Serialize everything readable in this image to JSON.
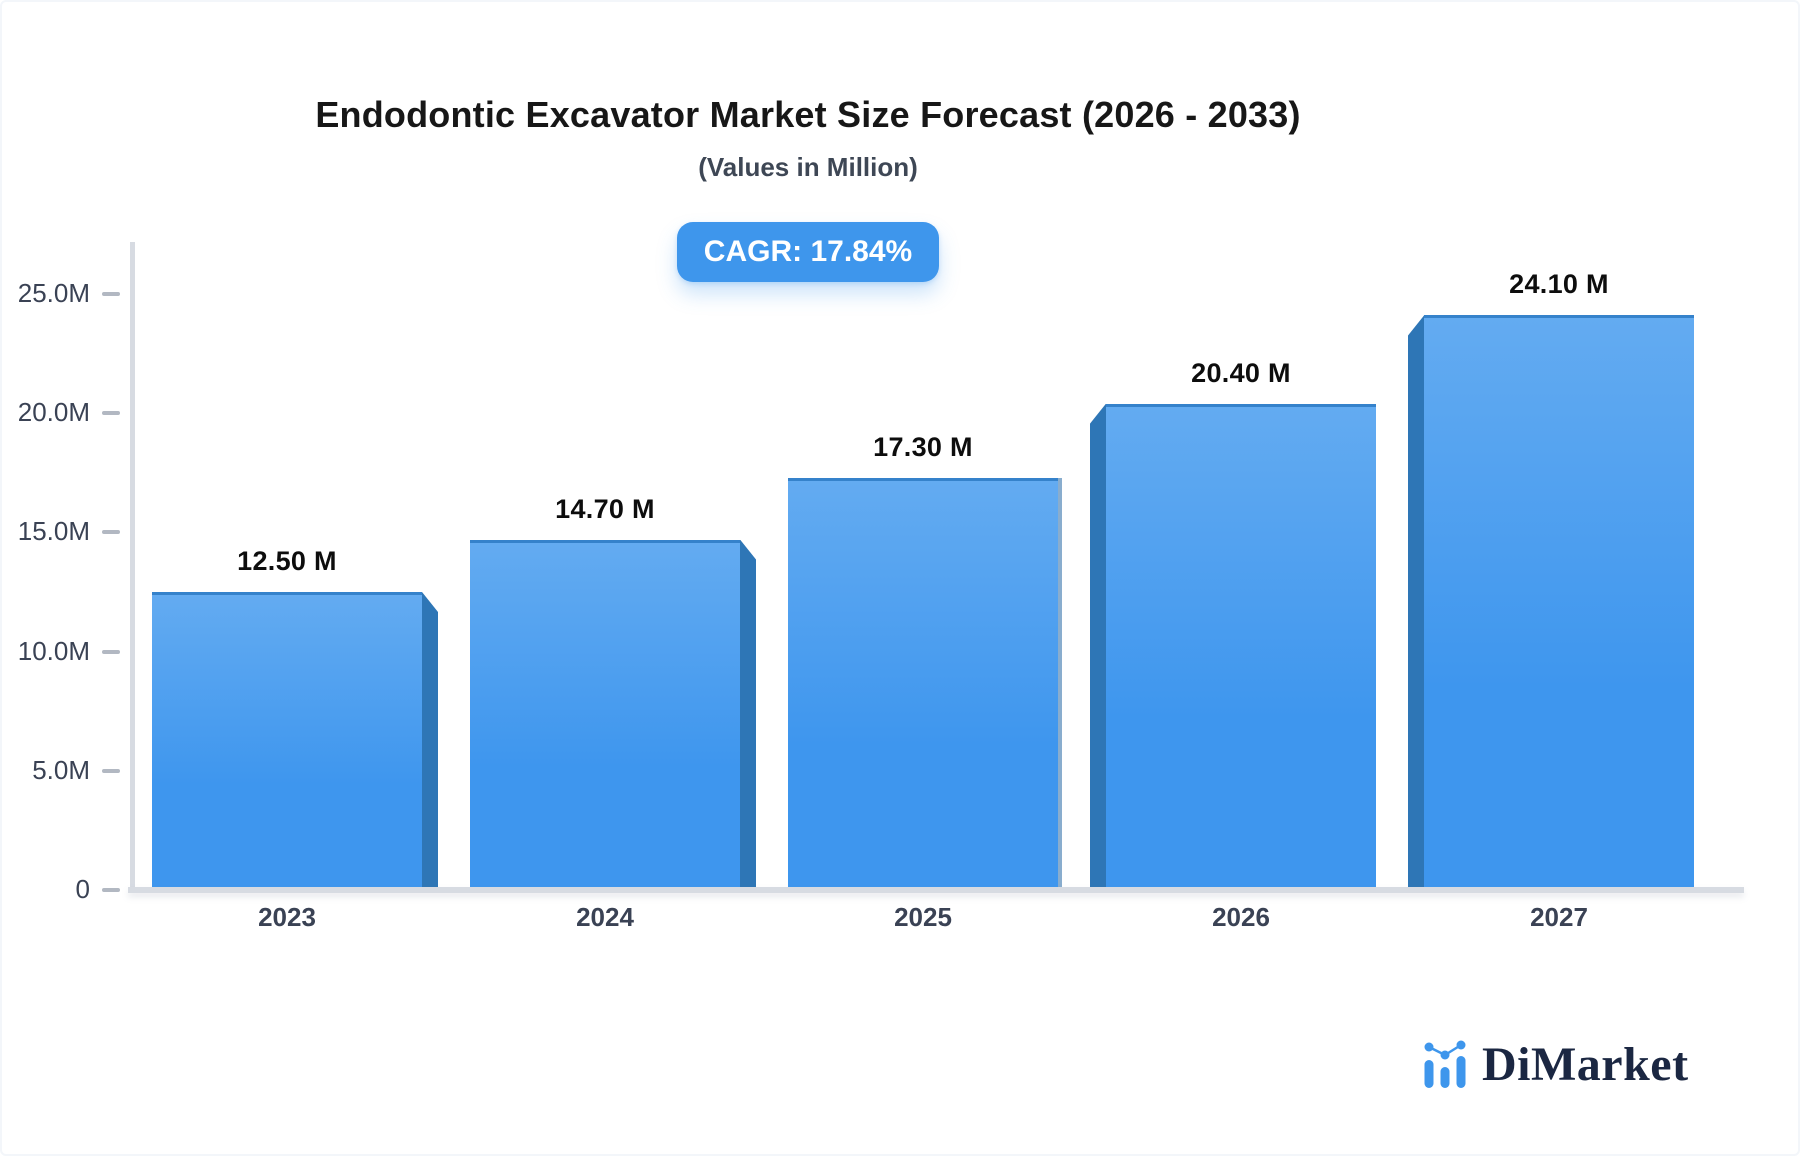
{
  "header": {
    "title": "Endodontic Excavator Market Size Forecast (2026 - 2033)",
    "subtitle": "(Values in Million)",
    "cagr_label": "CAGR: 17.84%"
  },
  "chart_data": {
    "type": "bar",
    "categories": [
      "2023",
      "2024",
      "2025",
      "2026",
      "2027"
    ],
    "values": [
      12.5,
      14.7,
      17.3,
      20.4,
      24.1
    ],
    "bar_labels": [
      "12.50 M",
      "14.70 M",
      "17.30 M",
      "20.40 M",
      "24.10 M"
    ],
    "title": "Endodontic Excavator Market Size Forecast (2026 - 2033)",
    "subtitle": "(Values in Million)",
    "annotation": "CAGR: 17.84%",
    "xlabel": "",
    "ylabel": "",
    "ylim": [
      0,
      25
    ],
    "grid": false,
    "legend": "none",
    "yticks": [
      {
        "value": 25,
        "label": "25.0M"
      },
      {
        "value": 20,
        "label": "20.0M"
      },
      {
        "value": 15,
        "label": "15.0M"
      },
      {
        "value": 10,
        "label": "10.0M"
      },
      {
        "value": 5,
        "label": "5.0M"
      },
      {
        "value": 0,
        "label": "0"
      }
    ]
  },
  "colors": {
    "badge_bg": "#3e96ec",
    "bar_face_top": "#63abf1",
    "bar_face_bottom": "#3e96ee",
    "bar_side": "#2e76b6",
    "axis_line": "#d7dbe2",
    "tick_label": "#3a4254",
    "value_label": "#0d0d0d",
    "logo_blue": "#3e96ec",
    "logo_text": "#1b2742"
  },
  "logo": {
    "text": "DiMarket",
    "icon": "mini-bar-line-chart-icon"
  }
}
